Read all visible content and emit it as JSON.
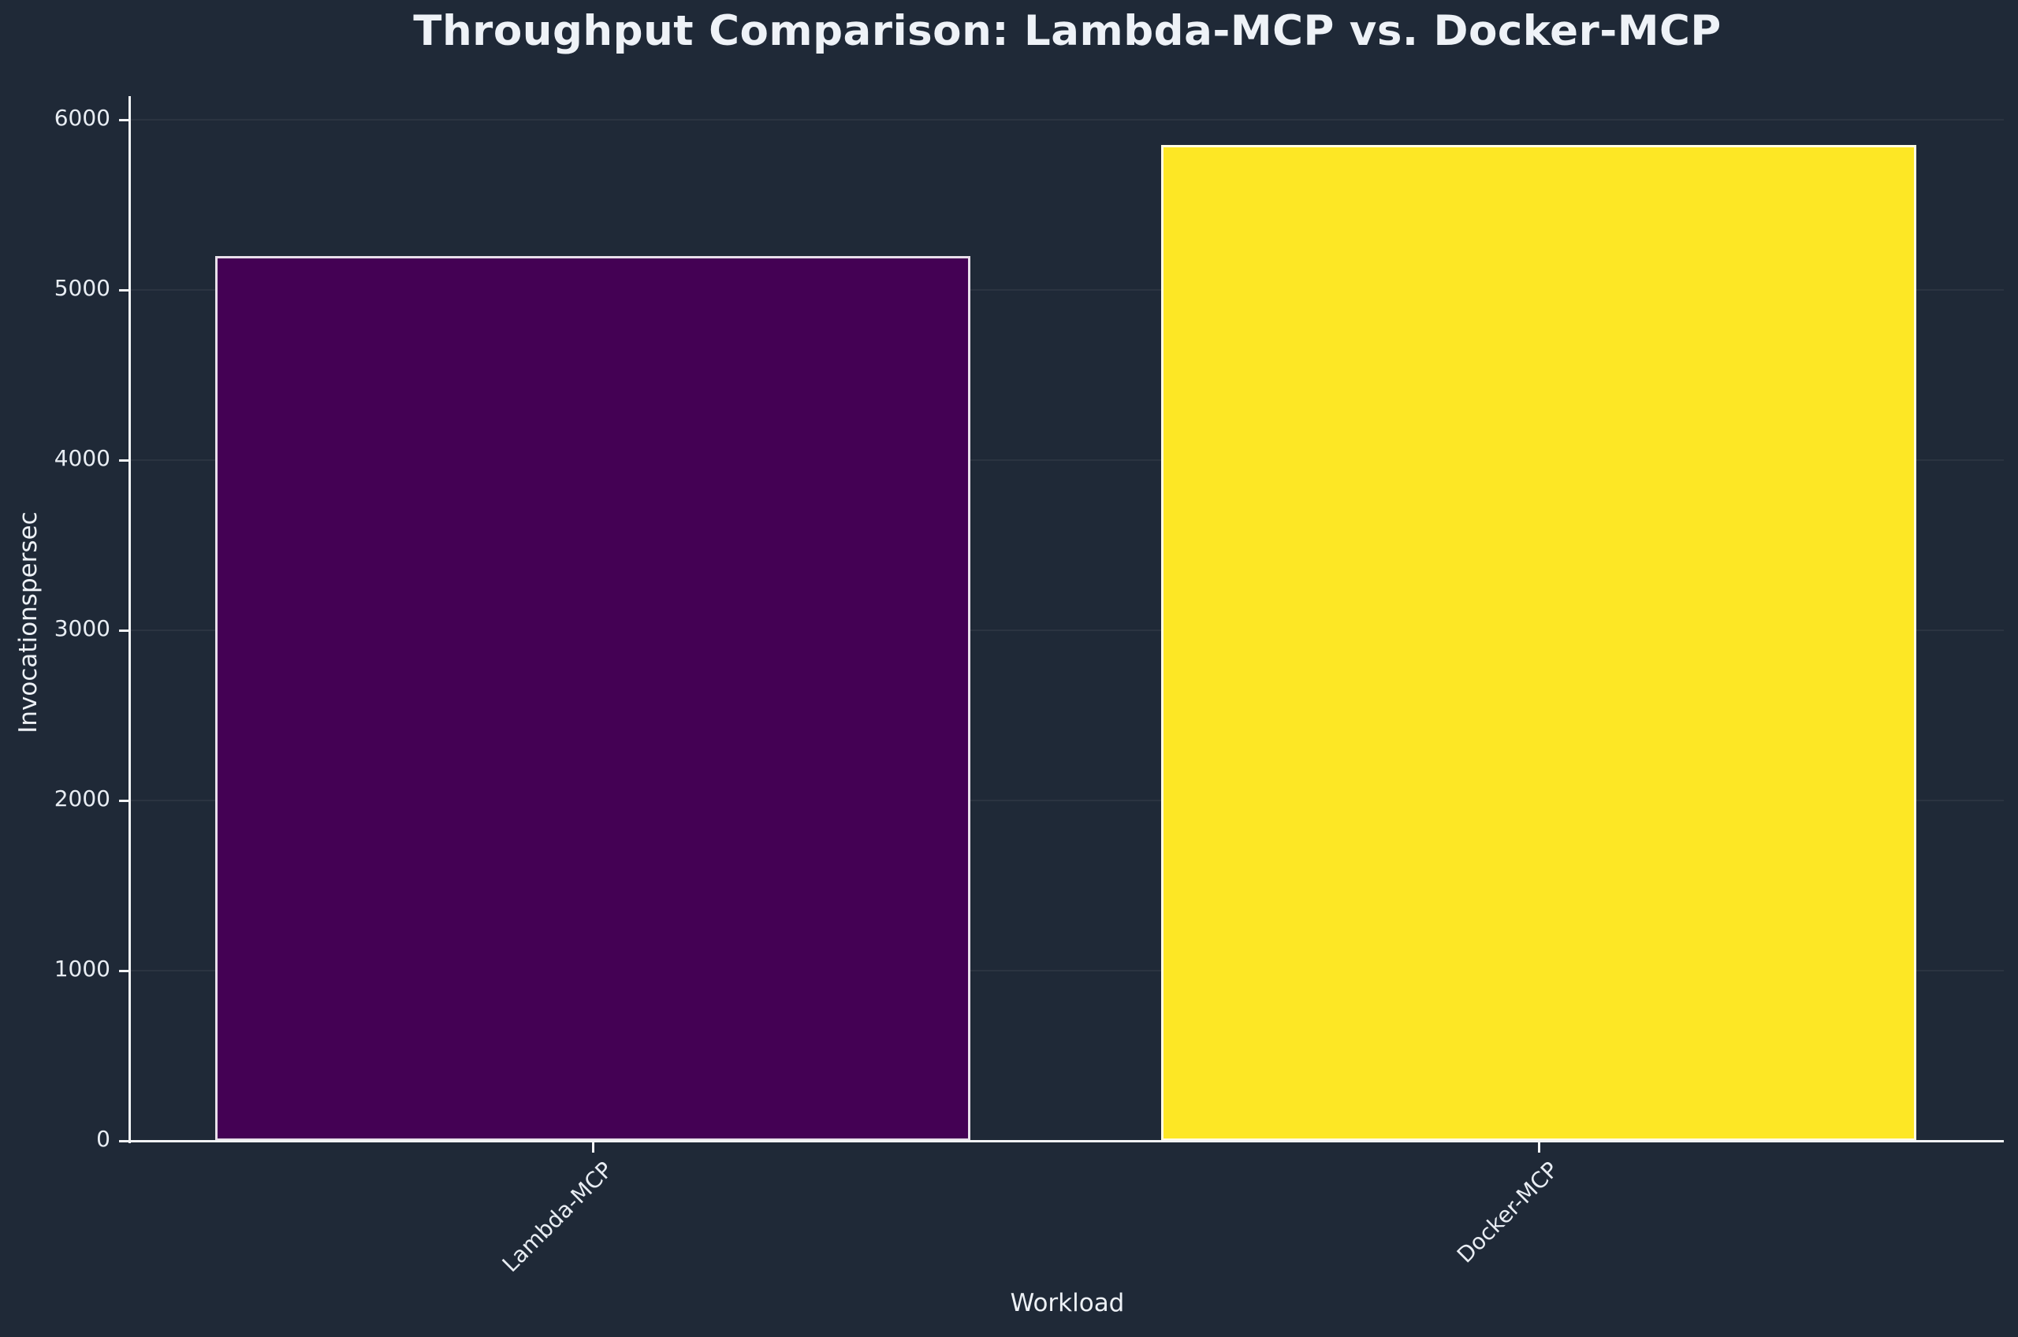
{
  "background_color": "#1f2937",
  "axis_color": "#f2f4f6",
  "text_color": "#edf1f6",
  "chart_data": {
    "type": "bar",
    "title": "Throughput Comparison: Lambda-MCP vs. Docker-MCP",
    "xlabel": "Workload",
    "ylabel": "Invocationspersec",
    "categories": [
      "Lambda-MCP",
      "Docker-MCP"
    ],
    "values": [
      5200,
      5850
    ],
    "bar_colors": [
      "#440154",
      "#FDE725"
    ],
    "bar_edge_color": "#ffffff",
    "ylim": [
      0,
      6000
    ],
    "yticks": [
      0,
      1000,
      2000,
      3000,
      4000,
      5000,
      6000
    ],
    "xtick_rotation_deg": 45,
    "grid": "faint horizontal lines at each ytick",
    "legend": "none"
  }
}
